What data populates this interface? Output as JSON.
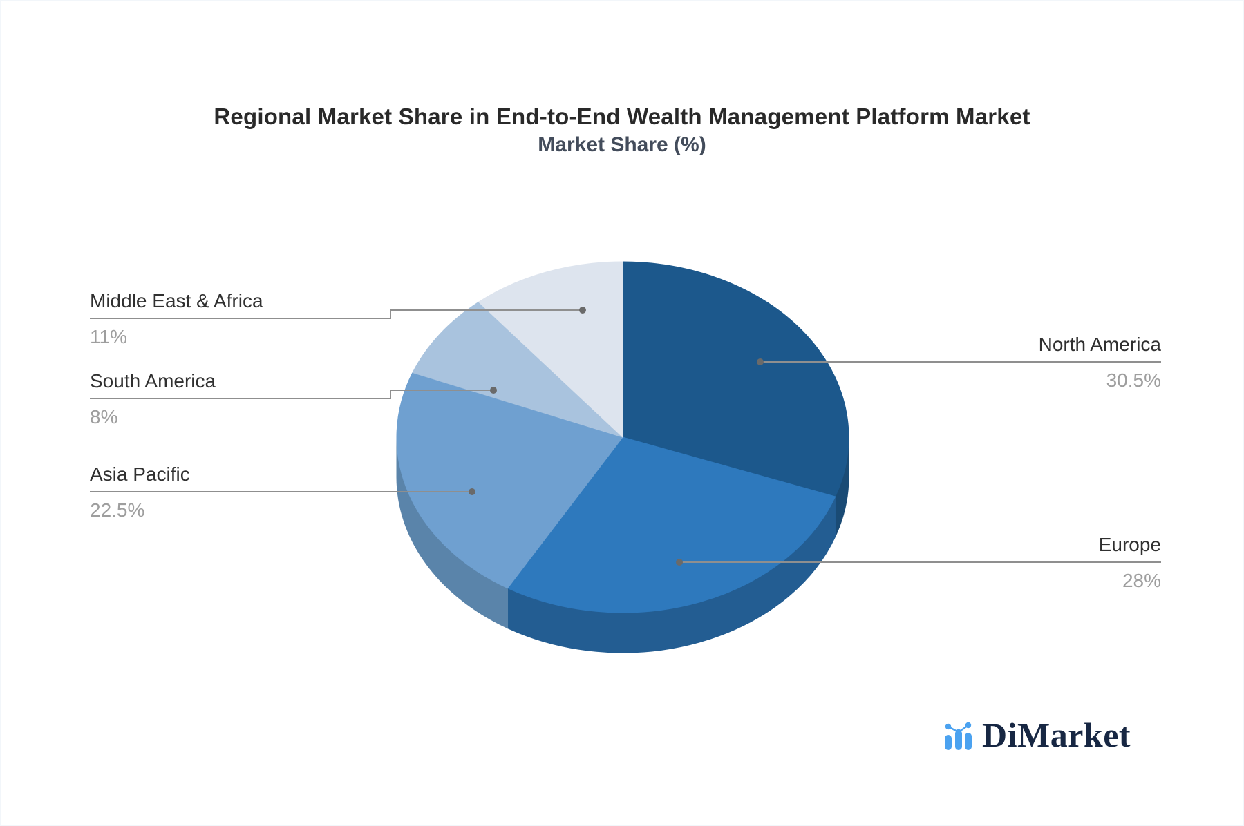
{
  "page": {
    "background": "#ffffff"
  },
  "header": {
    "title": "Regional Market Share in End-to-End Wealth Management Platform Market",
    "subtitle": "Market Share (%)"
  },
  "chart_data": {
    "type": "pie",
    "style": "3d-pie-extruded",
    "title": "Regional Market Share in End-to-End Wealth Management Platform Market",
    "subtitle": "Market Share (%)",
    "unit": "%",
    "start_angle": "12 o'clock, clockwise",
    "legend_position": "none (callout labels with leader lines)",
    "slices": [
      {
        "label": "North America",
        "value": 30.5,
        "display": "30.5%",
        "color": "#1C588C",
        "side_color": "#1A4B75"
      },
      {
        "label": "Europe",
        "value": 28,
        "display": "28%",
        "color": "#2E79BD",
        "side_color": "#235D92"
      },
      {
        "label": "Asia Pacific",
        "value": 22.5,
        "display": "22.5%",
        "color": "#6FA0D0",
        "side_color": "#5A84AA"
      },
      {
        "label": "South America",
        "value": 8,
        "display": "8%",
        "color": "#A9C3DE",
        "side_color": "#8BA6C1"
      },
      {
        "label": "Middle East & Africa",
        "value": 11,
        "display": "11%",
        "color": "#DDE4EE",
        "side_color": "#B8C3D3"
      }
    ],
    "leader_line_color": "#8f8f8f",
    "leader_dot_color": "#6a6a6a",
    "label_color": "#303030",
    "value_color": "#9e9e9e"
  },
  "logo": {
    "text": "DiMarket",
    "icon": "mini-bar-line-chart",
    "icon_color": "#4BA2F0",
    "text_color": "#172743"
  }
}
